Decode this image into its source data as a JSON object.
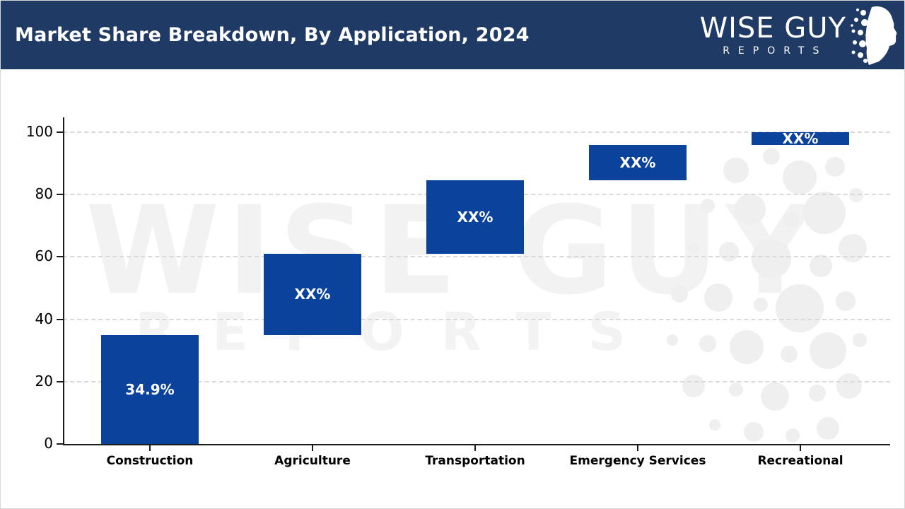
{
  "header": {
    "title": "Market Share Breakdown, By Application, 2024",
    "logo": {
      "line1": "WISE GUY",
      "line2": "REPORTS"
    }
  },
  "watermark": {
    "line1": "WISE GUY",
    "line2": "REPORTS"
  },
  "colors": {
    "header_bg": "#203a66",
    "bar": "#0b429c",
    "bar_label": "#ffffff",
    "gridline": "#d9d9d9",
    "axis": "#1a1a1a",
    "title_text": "#ffffff"
  },
  "chart_data": {
    "type": "bar",
    "subtype": "waterfall-floating-bars",
    "title": "Market Share Breakdown, By Application, 2024",
    "categories": [
      "Construction",
      "Agriculture",
      "Transportation",
      "Emergency Services",
      "Recreational"
    ],
    "segments": [
      {
        "category": "Construction",
        "start": 0,
        "end": 34.9,
        "label": "34.9%"
      },
      {
        "category": "Agriculture",
        "start": 35,
        "end": 61,
        "label": "XX%"
      },
      {
        "category": "Transportation",
        "start": 61,
        "end": 84.5,
        "label": "XX%"
      },
      {
        "category": "Emergency Services",
        "start": 84.5,
        "end": 96,
        "label": "XX%"
      },
      {
        "category": "Recreational",
        "start": 96,
        "end": 100,
        "label": "XX%"
      }
    ],
    "yticks": [
      0,
      20,
      40,
      60,
      80,
      100
    ],
    "ylim": [
      0,
      104.5
    ],
    "xlabel": "",
    "ylabel": "",
    "grid": "horizontal-dashed",
    "legend": "none"
  }
}
